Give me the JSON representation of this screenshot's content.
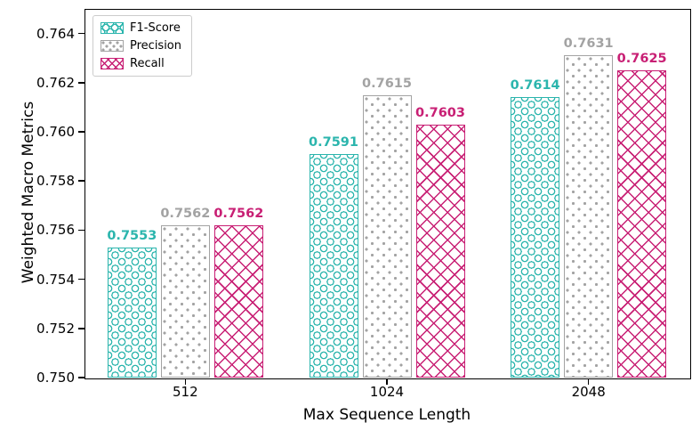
{
  "chart_data": {
    "type": "bar",
    "title": "",
    "xlabel": "Max Sequence Length",
    "ylabel": "Weighted Macro Metrics",
    "categories": [
      "512",
      "1024",
      "2048"
    ],
    "series": [
      {
        "name": "F1-Score",
        "color": "#2bb5ad",
        "hatch": "circle",
        "values": [
          0.7553,
          0.7591,
          0.7614
        ]
      },
      {
        "name": "Precision",
        "color": "#a3a3a3",
        "hatch": "dot",
        "values": [
          0.7562,
          0.7615,
          0.7631
        ]
      },
      {
        "name": "Recall",
        "color": "#c81f74",
        "hatch": "cross",
        "values": [
          0.7562,
          0.7603,
          0.7625
        ]
      }
    ],
    "value_labels": [
      [
        "0.7553",
        "0.7591",
        "0.7614"
      ],
      [
        "0.7562",
        "0.7615",
        "0.7631"
      ],
      [
        "0.7562",
        "0.7603",
        "0.7625"
      ]
    ],
    "ylim": [
      0.75,
      0.765
    ],
    "yticks": [
      0.75,
      0.752,
      0.754,
      0.756,
      0.758,
      0.76,
      0.762,
      0.764
    ],
    "ytick_labels": [
      "0.750",
      "0.752",
      "0.754",
      "0.756",
      "0.758",
      "0.760",
      "0.762",
      "0.764"
    ],
    "legend_position": "upper left",
    "grid": false
  }
}
